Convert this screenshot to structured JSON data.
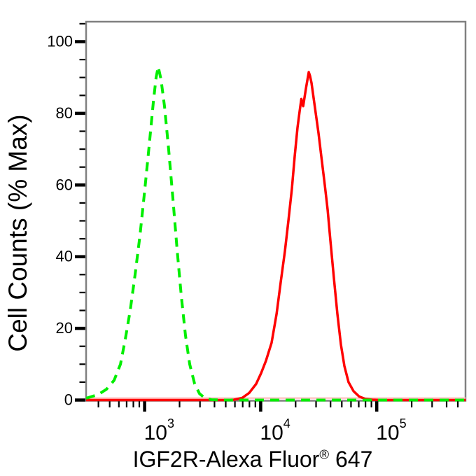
{
  "figure": {
    "background": "#ffffff",
    "frame_color": "#808080",
    "tick_color": "#000000",
    "baseline_halo_color": "#ffc9c9"
  },
  "chart_data": {
    "type": "line",
    "subtype": "flow-cytometry-histogram-overlay",
    "xlabel": "IGF2R-Alexa Fluor® 647",
    "xlabel_parts": {
      "prefix": "IGF2R-Alexa Fluor",
      "sup": "®",
      "suffix": "647"
    },
    "ylabel": "Cell Counts (% Max)",
    "grid": false,
    "legend": false,
    "x_axis": {
      "scale": "log",
      "min": 313,
      "max": 585000,
      "major_ticks": [
        {
          "value": 1000,
          "base": "10",
          "exp": "3"
        },
        {
          "value": 10000,
          "base": "10",
          "exp": "4"
        },
        {
          "value": 100000,
          "base": "10",
          "exp": "5"
        }
      ],
      "minor_tick_multiples": [
        2,
        3,
        4,
        5,
        6,
        7,
        8,
        9
      ]
    },
    "y_axis": {
      "min": 0,
      "max": 105.5,
      "major_ticks": [
        0,
        20,
        40,
        60,
        80,
        100
      ],
      "minor_step": 5
    },
    "series": [
      {
        "name": "red-solid",
        "color": "#ff0000",
        "style": "solid",
        "stroke_width": 3.5,
        "points": [
          [
            313,
            0
          ],
          [
            5000,
            0
          ],
          [
            5900,
            0.1
          ],
          [
            6930,
            0.6
          ],
          [
            7960,
            2
          ],
          [
            9140,
            4.5
          ],
          [
            10090,
            7.5
          ],
          [
            11120,
            11
          ],
          [
            12420,
            16
          ],
          [
            13700,
            24
          ],
          [
            14890,
            33
          ],
          [
            16180,
            41.5
          ],
          [
            17340,
            50
          ],
          [
            18580,
            59
          ],
          [
            19640,
            68
          ],
          [
            20750,
            76
          ],
          [
            21630,
            80.5
          ],
          [
            22420,
            84
          ],
          [
            23220,
            82
          ],
          [
            24550,
            87
          ],
          [
            25950,
            91.5
          ],
          [
            26600,
            90.5
          ],
          [
            27420,
            88.5
          ],
          [
            29380,
            81.5
          ],
          [
            31480,
            74.5
          ],
          [
            33270,
            68
          ],
          [
            35660,
            60
          ],
          [
            37750,
            53
          ],
          [
            39900,
            44.5
          ],
          [
            42750,
            34
          ],
          [
            45810,
            24
          ],
          [
            49090,
            15.5
          ],
          [
            52610,
            9.5
          ],
          [
            57160,
            5
          ],
          [
            63050,
            2.5
          ],
          [
            70470,
            1
          ],
          [
            79850,
            0.3
          ],
          [
            91770,
            0.1
          ],
          [
            110000,
            0
          ],
          [
            585000,
            0
          ]
        ]
      },
      {
        "name": "green-dashed",
        "color": "#00ee00",
        "style": "dashed",
        "stroke_width": 4,
        "dash": "13 9",
        "points": [
          [
            313,
            0.5
          ],
          [
            397,
            1.5
          ],
          [
            469,
            3
          ],
          [
            546,
            5.5
          ],
          [
            619,
            10
          ],
          [
            682,
            17
          ],
          [
            751,
            25
          ],
          [
            828,
            35
          ],
          [
            912,
            46
          ],
          [
            1005,
            59
          ],
          [
            1094,
            71
          ],
          [
            1188,
            83
          ],
          [
            1256,
            90
          ],
          [
            1310,
            93
          ],
          [
            1384,
            89.5
          ],
          [
            1483,
            82
          ],
          [
            1611,
            70
          ],
          [
            1754,
            56
          ],
          [
            1906,
            42
          ],
          [
            2071,
            29
          ],
          [
            2250,
            18
          ],
          [
            2445,
            10
          ],
          [
            2698,
            4.5
          ],
          [
            2971,
            1.8
          ],
          [
            3319,
            0.5
          ],
          [
            3758,
            0.1
          ],
          [
            5000,
            0
          ],
          [
            585000,
            0
          ]
        ]
      }
    ]
  }
}
